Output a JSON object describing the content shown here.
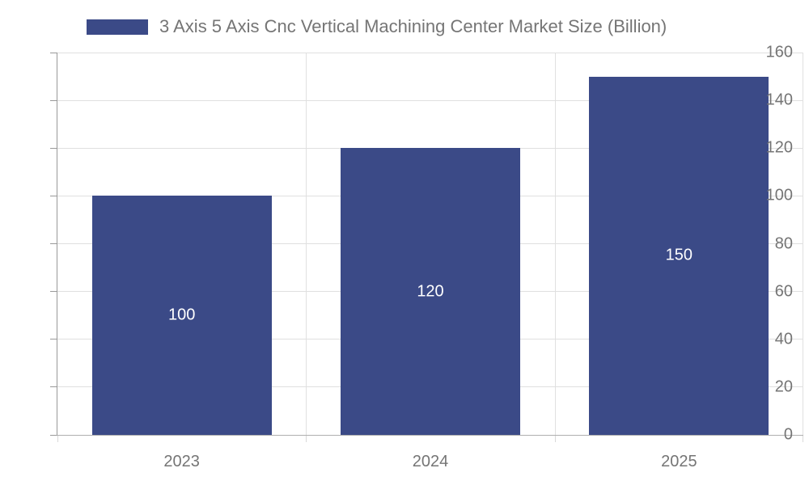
{
  "chart_data": {
    "type": "bar",
    "title": "3 Axis 5 Axis Cnc Vertical Machining Center Market Size (Billion)",
    "categories": [
      "2023",
      "2024",
      "2025"
    ],
    "values": [
      100,
      120,
      150
    ],
    "data_labels": [
      "100",
      "120",
      "150"
    ],
    "xlabel": "",
    "ylabel": "",
    "ylim": [
      0,
      160
    ],
    "y_ticks": [
      0,
      20,
      40,
      60,
      80,
      100,
      120,
      140,
      160
    ],
    "grid": true,
    "legend_position": "top",
    "colors": {
      "bar": "#3b4a87",
      "grid": "#e0e0e0",
      "y_axis": "#999999",
      "x_axis": "#b0b0b0",
      "tick_label": "#757575",
      "legend_text": "#757575",
      "data_label": "#ffffff",
      "background": "#ffffff"
    }
  }
}
